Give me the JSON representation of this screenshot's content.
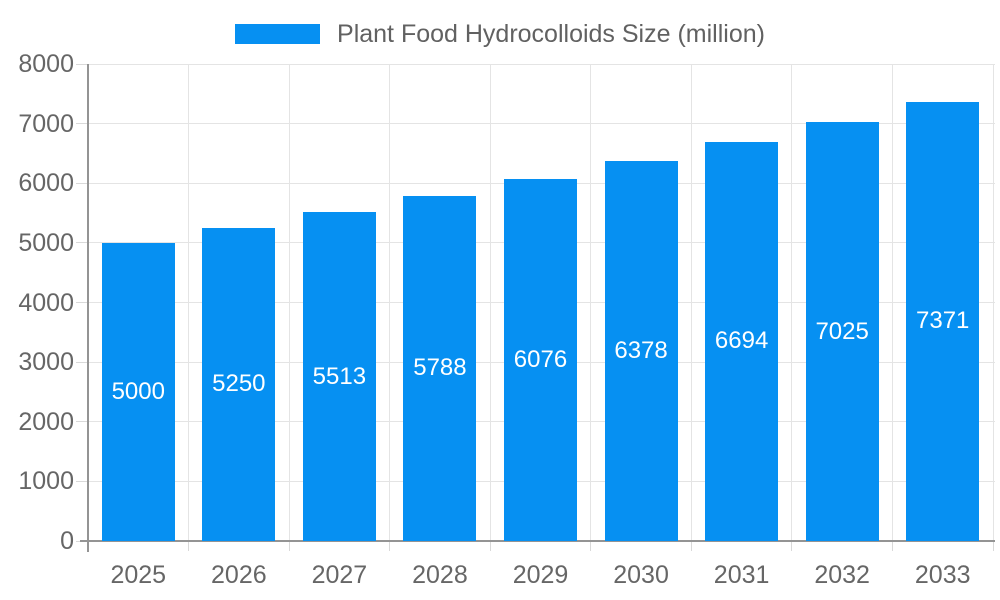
{
  "legend": {
    "label": "Plant Food Hydrocolloids Size (million)"
  },
  "chart_data": {
    "type": "bar",
    "title": "Plant Food Hydrocolloids Size (million)",
    "categories": [
      "2025",
      "2026",
      "2027",
      "2028",
      "2029",
      "2030",
      "2031",
      "2032",
      "2033"
    ],
    "values": [
      5000,
      5250,
      5513,
      5788,
      6076,
      6378,
      6694,
      7025,
      7371
    ],
    "value_labels": [
      "5000",
      "5250",
      "5513",
      "5788",
      "6076",
      "6378",
      "6694",
      "7025",
      "7371"
    ],
    "xlabel": "",
    "ylabel": "",
    "ylim": [
      0,
      8000
    ],
    "ytick_step": 1000,
    "yticks": [
      0,
      1000,
      2000,
      3000,
      4000,
      5000,
      6000,
      7000,
      8000
    ],
    "grid": true,
    "legend_position": "top-center",
    "colors": {
      "bar": "#0690F2",
      "value_label": "#ffffff",
      "axis_line": "#949494",
      "gridline": "#e4e4e4",
      "tick": "#d9d9d9",
      "axis_label": "#666666",
      "title": "#616161",
      "background": "#ffffff"
    }
  }
}
